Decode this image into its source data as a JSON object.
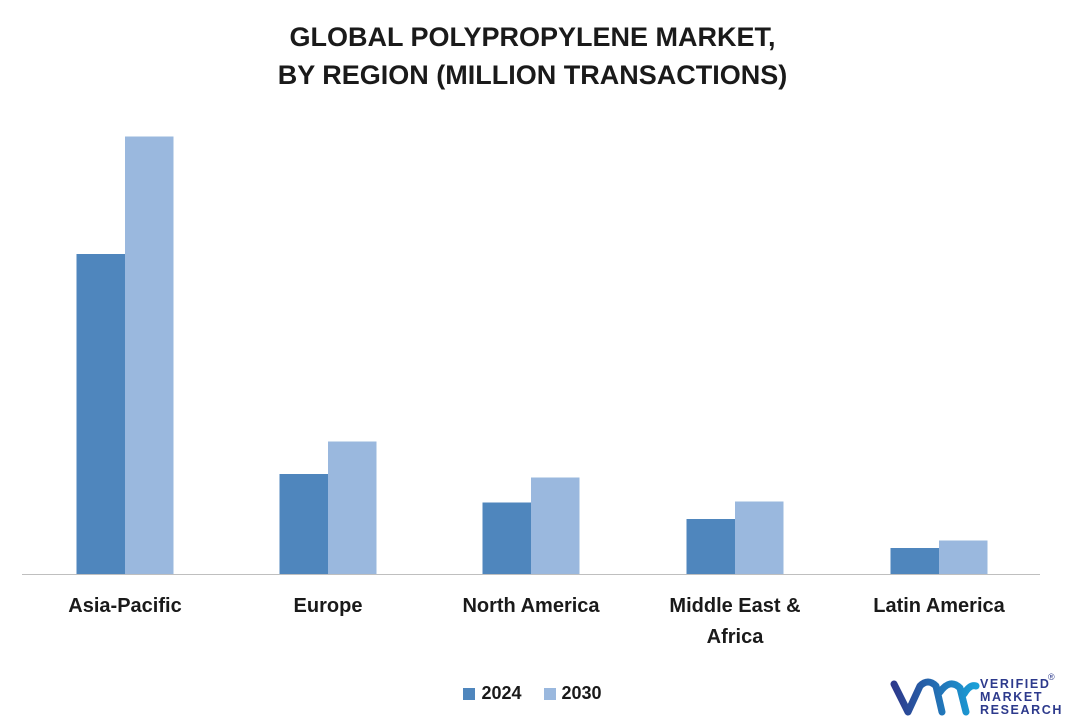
{
  "chart_data": {
    "type": "bar",
    "title_lines": [
      "GLOBAL POLYPROPYLENE MARKET,",
      "BY REGION (MILLION TRANSACTIONS)"
    ],
    "categories": [
      [
        "Asia-Pacific"
      ],
      [
        "Europe"
      ],
      [
        "North America"
      ],
      [
        "Middle East &",
        "Africa"
      ],
      [
        "Latin America"
      ]
    ],
    "series": [
      {
        "name": "2024",
        "color": "#4f86bd",
        "values": [
          64,
          20,
          14.3,
          11,
          5.2
        ]
      },
      {
        "name": "2030",
        "color": "#9ab8de",
        "values": [
          87.5,
          26.5,
          19.3,
          14.5,
          6.7
        ]
      }
    ],
    "ylim": [
      0,
      100
    ],
    "grid": false,
    "legend_position": "bottom"
  },
  "logo": {
    "lines": [
      "VERIFIED",
      "MARKET",
      "RESEARCH"
    ],
    "reg": "®"
  }
}
